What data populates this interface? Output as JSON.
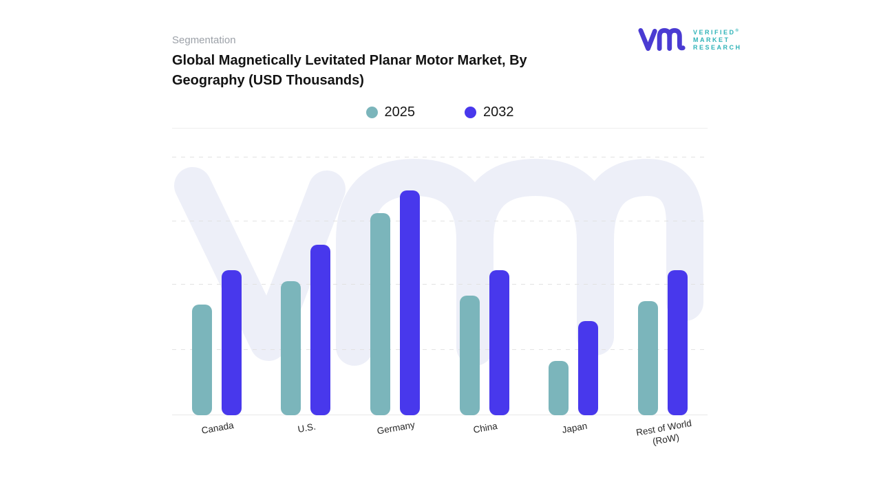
{
  "brand": {
    "name": "Verified Market Research",
    "logo_text_lines": [
      "VERIFIED",
      "MARKET",
      "RESEARCH"
    ],
    "registered_symbol": "®",
    "monogram_color": "#4A3BD2",
    "text_color": "#2FB3B8"
  },
  "header": {
    "eyebrow": "Segmentation",
    "title_line1": "Global Magnetically Levitated Planar Motor Market, By",
    "title_line2": "Geography (USD Thousands)"
  },
  "chart_data": {
    "type": "bar",
    "title": "Global Magnetically Levitated Planar Motor Market, By Geography (USD Thousands)",
    "categories": [
      "Canada",
      "U.S.",
      "Germany",
      "China",
      "Japan",
      "Rest of World (RoW)"
    ],
    "series": [
      {
        "name": "2025",
        "color": "#7BB5BB",
        "values": [
          39,
          47,
          71,
          42,
          19,
          40
        ]
      },
      {
        "name": "2032",
        "color": "#4838EC",
        "values": [
          51,
          60,
          79,
          51,
          33,
          51
        ]
      }
    ],
    "xlabel": "",
    "ylabel": "",
    "ylim": [
      0,
      100
    ],
    "value_note": "No y-axis tick labels are shown in the figure; values are relative bar heights as % of plot height (units: USD Thousands)",
    "grid": "horizontal-dashed",
    "legend_position": "top-center",
    "watermark": "vmr-monogram"
  },
  "styles": {
    "teal": "#7BB5BB",
    "blue": "#4838EC",
    "eyebrow_color": "#9CA1A8",
    "title_color": "#131313",
    "axis_label_color": "#262626",
    "gridline_color": "#E2E2E2",
    "axis_line_color": "#E7E7E7",
    "watermark_color": "#EDEFF8"
  }
}
